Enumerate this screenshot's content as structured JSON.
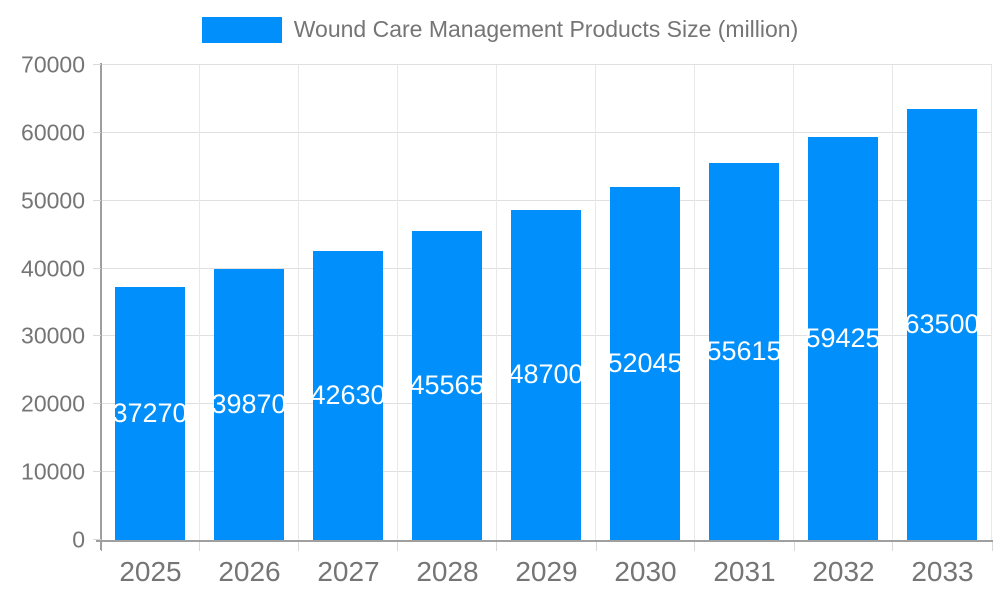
{
  "chart_data": {
    "type": "bar",
    "title": "Wound Care Management Products Size (million)",
    "legend_position": "top",
    "categories": [
      "2025",
      "2026",
      "2027",
      "2028",
      "2029",
      "2030",
      "2031",
      "2032",
      "2033"
    ],
    "series": [
      {
        "name": "Wound Care Management Products Size (million)",
        "values": [
          37270,
          39870,
          42630,
          45565,
          48700,
          52045,
          55615,
          59425,
          63500
        ]
      }
    ],
    "data_labels": [
      37270,
      39870,
      42630,
      45565,
      48700,
      52045,
      55615,
      59425,
      63500
    ],
    "xlabel": "",
    "ylabel": "",
    "ylim": [
      0,
      70000
    ],
    "yticks": [
      0,
      10000,
      20000,
      30000,
      40000,
      50000,
      60000,
      70000
    ],
    "grid": true,
    "colors": {
      "bar": "#008FFB",
      "bar_label": "#ffffff",
      "axis_text": "#757575",
      "h_grid_line": "#e0e0e0",
      "v_grid_line": "#e8e8e8",
      "axis_line": "#9f9f9f",
      "tick_mark": "#d9d9d9",
      "background": "#ffffff"
    }
  }
}
